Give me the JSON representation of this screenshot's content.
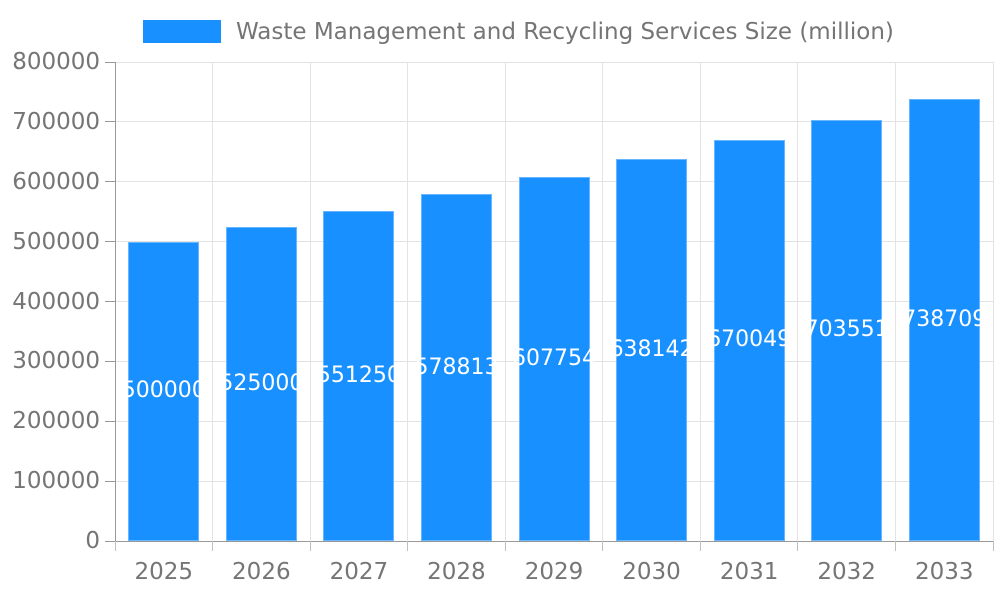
{
  "chart_data": {
    "type": "bar",
    "title": "Waste Management and Recycling Services Size (million)",
    "categories": [
      "2025",
      "2026",
      "2027",
      "2028",
      "2029",
      "2030",
      "2031",
      "2032",
      "2033"
    ],
    "values": [
      500000,
      525000,
      551250,
      578813,
      607754,
      638142,
      670049,
      703551,
      738709
    ],
    "xlabel": "",
    "ylabel": "",
    "ylim": [
      0,
      800000
    ],
    "ytick_step": 100000,
    "ytick_labels": [
      "0",
      "100000",
      "200000",
      "300000",
      "400000",
      "500000",
      "600000",
      "700000",
      "800000"
    ],
    "grid": true,
    "legend_position": "top",
    "data_labels": "inside-center",
    "colors": {
      "bar": "#1890ff",
      "bar_label": "#ffffff",
      "axis": "#999999",
      "minor_tick": "#bfbfbf",
      "grid": "#e3e3e3",
      "text": "#757575",
      "background": "#ffffff"
    }
  }
}
